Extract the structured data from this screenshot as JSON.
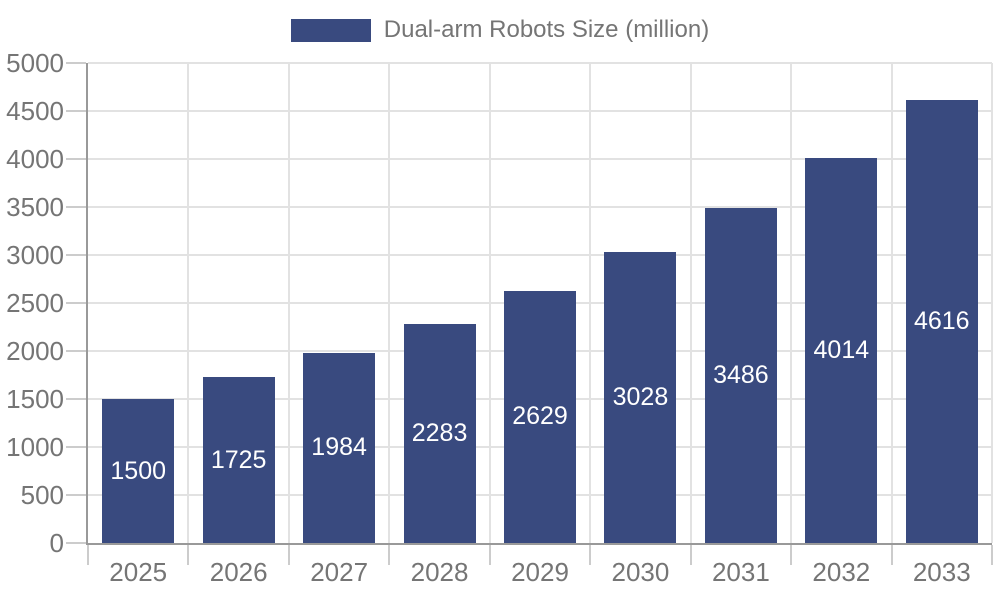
{
  "chart_data": {
    "type": "bar",
    "title": "",
    "xlabel": "",
    "ylabel": "",
    "legend": [
      {
        "label": "Dual-arm Robots Size (million)",
        "color": "#394A7F"
      }
    ],
    "legend_position": "top-center",
    "categories": [
      "2025",
      "2026",
      "2027",
      "2028",
      "2029",
      "2030",
      "2031",
      "2032",
      "2033"
    ],
    "series": [
      {
        "name": "Dual-arm Robots Size (million)",
        "values": [
          1500,
          1725,
          1984,
          2283,
          2629,
          3028,
          3486,
          4014,
          4616
        ]
      }
    ],
    "bar_value_labels": [
      "1500",
      "1725",
      "1984",
      "2283",
      "2629",
      "3028",
      "3486",
      "4014",
      "4616"
    ],
    "ylim": [
      0,
      5000
    ],
    "y_ticks": [
      0,
      500,
      1000,
      1500,
      2000,
      2500,
      3000,
      3500,
      4000,
      4500,
      5000
    ],
    "grid": true,
    "style": {
      "bar_color": "#394A7F",
      "value_label_color": "#ffffff",
      "tick_label_color": "#757575",
      "legend_text_color": "#757575",
      "grid_color": "#e2e2e2",
      "axis_color": "#999999",
      "tick_color": "#cccccc",
      "background": "#ffffff"
    }
  }
}
